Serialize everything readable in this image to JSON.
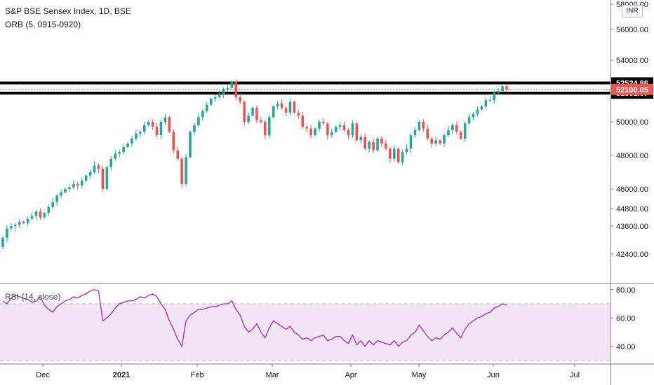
{
  "header": {
    "title": "S&P BSE Sensex Index, 1D, BSE",
    "indicator": "ORB (5, 0915-0920)",
    "currency_badge": "INR"
  },
  "rsi_panel": {
    "label": "RSI (14, close)"
  },
  "colors": {
    "up": "#26a69a",
    "down": "#ef5350",
    "rsi_line": "#9c27b0",
    "rsi_band": "#f3e5f5",
    "level_line": "#000000",
    "price_tag": "#ef5350"
  },
  "chart_data": [
    {
      "type": "candlestick",
      "y_ticks": [
        42400,
        43600,
        44800,
        46000,
        48000,
        50000,
        52000,
        54000,
        56000,
        58000
      ],
      "y_tick_labels": [
        "42400.00",
        "43600.00",
        "44800.00",
        "46000.00",
        "48000.00",
        "50000.00",
        "52000.00",
        "54000.00",
        "56000.00",
        "58000.00"
      ],
      "x_labels": [
        "Dec",
        "2021",
        "Feb",
        "Mar",
        "Apr",
        "May",
        "Jun",
        "Jul"
      ],
      "levels": [
        {
          "value": 52524.86,
          "label": "52524.86"
        },
        {
          "value": 51861.07,
          "label": "51861.07"
        }
      ],
      "last_price": {
        "value": 52100.05,
        "label": "52100.05"
      },
      "close_series": [
        43100,
        43500,
        43600,
        43700,
        43900,
        43800,
        44100,
        44300,
        44600,
        44200,
        44500,
        44900,
        45200,
        45600,
        45800,
        46000,
        46100,
        46300,
        46200,
        46500,
        46800,
        47000,
        47400,
        47200,
        46000,
        47300,
        47800,
        48100,
        48200,
        48500,
        48700,
        49000,
        49300,
        49400,
        49800,
        50000,
        49700,
        49200,
        50000,
        50300,
        49400,
        48300,
        47800,
        46300,
        47900,
        49400,
        49800,
        50300,
        50700,
        51100,
        51500,
        51600,
        51800,
        52100,
        52200,
        52600,
        51600,
        51300,
        50000,
        50400,
        50900,
        50100,
        50000,
        49200,
        50300,
        51000,
        51200,
        50900,
        50600,
        51300,
        50600,
        50400,
        49700,
        49600,
        49200,
        49600,
        50000,
        49900,
        49200,
        49400,
        49700,
        49800,
        49500,
        49200,
        49900,
        48900,
        49100,
        48400,
        48800,
        48300,
        49000,
        48700,
        48400,
        47800,
        48400,
        47600,
        48200,
        48400,
        49200,
        49500,
        50000,
        49600,
        49000,
        48700,
        48900,
        48700,
        49200,
        49500,
        49800,
        49400,
        49000,
        49900,
        50300,
        50500,
        50800,
        51000,
        51400,
        51400,
        51900,
        52000,
        52300,
        52100
      ],
      "rsi_ticks": [
        40,
        60,
        80
      ],
      "rsi_tick_labels": [
        "40.00",
        "60.00",
        "80.00"
      ],
      "rsi_band": [
        30,
        70
      ],
      "rsi_series": [
        72,
        70,
        74,
        76,
        75,
        74,
        73,
        71,
        72,
        75,
        69,
        66,
        64,
        68,
        70,
        72,
        73,
        75,
        74,
        76,
        77,
        79,
        80,
        79,
        58,
        60,
        63,
        67,
        70,
        71,
        72,
        72,
        73,
        75,
        74,
        76,
        77,
        75,
        70,
        66,
        58,
        52,
        45,
        40,
        58,
        62,
        64,
        66,
        66,
        67,
        68,
        68,
        69,
        70,
        70,
        72,
        66,
        62,
        54,
        50,
        52,
        56,
        50,
        46,
        53,
        58,
        56,
        54,
        52,
        54,
        50,
        48,
        45,
        46,
        44,
        46,
        47,
        48,
        44,
        45,
        47,
        47,
        44,
        42,
        48,
        41,
        44,
        40,
        44,
        41,
        44,
        43,
        42,
        41,
        44,
        40,
        43,
        44,
        48,
        50,
        55,
        51,
        47,
        44,
        46,
        45,
        48,
        50,
        53,
        49,
        46,
        52,
        56,
        58,
        60,
        61,
        63,
        64,
        67,
        68,
        70,
        69
      ]
    }
  ]
}
